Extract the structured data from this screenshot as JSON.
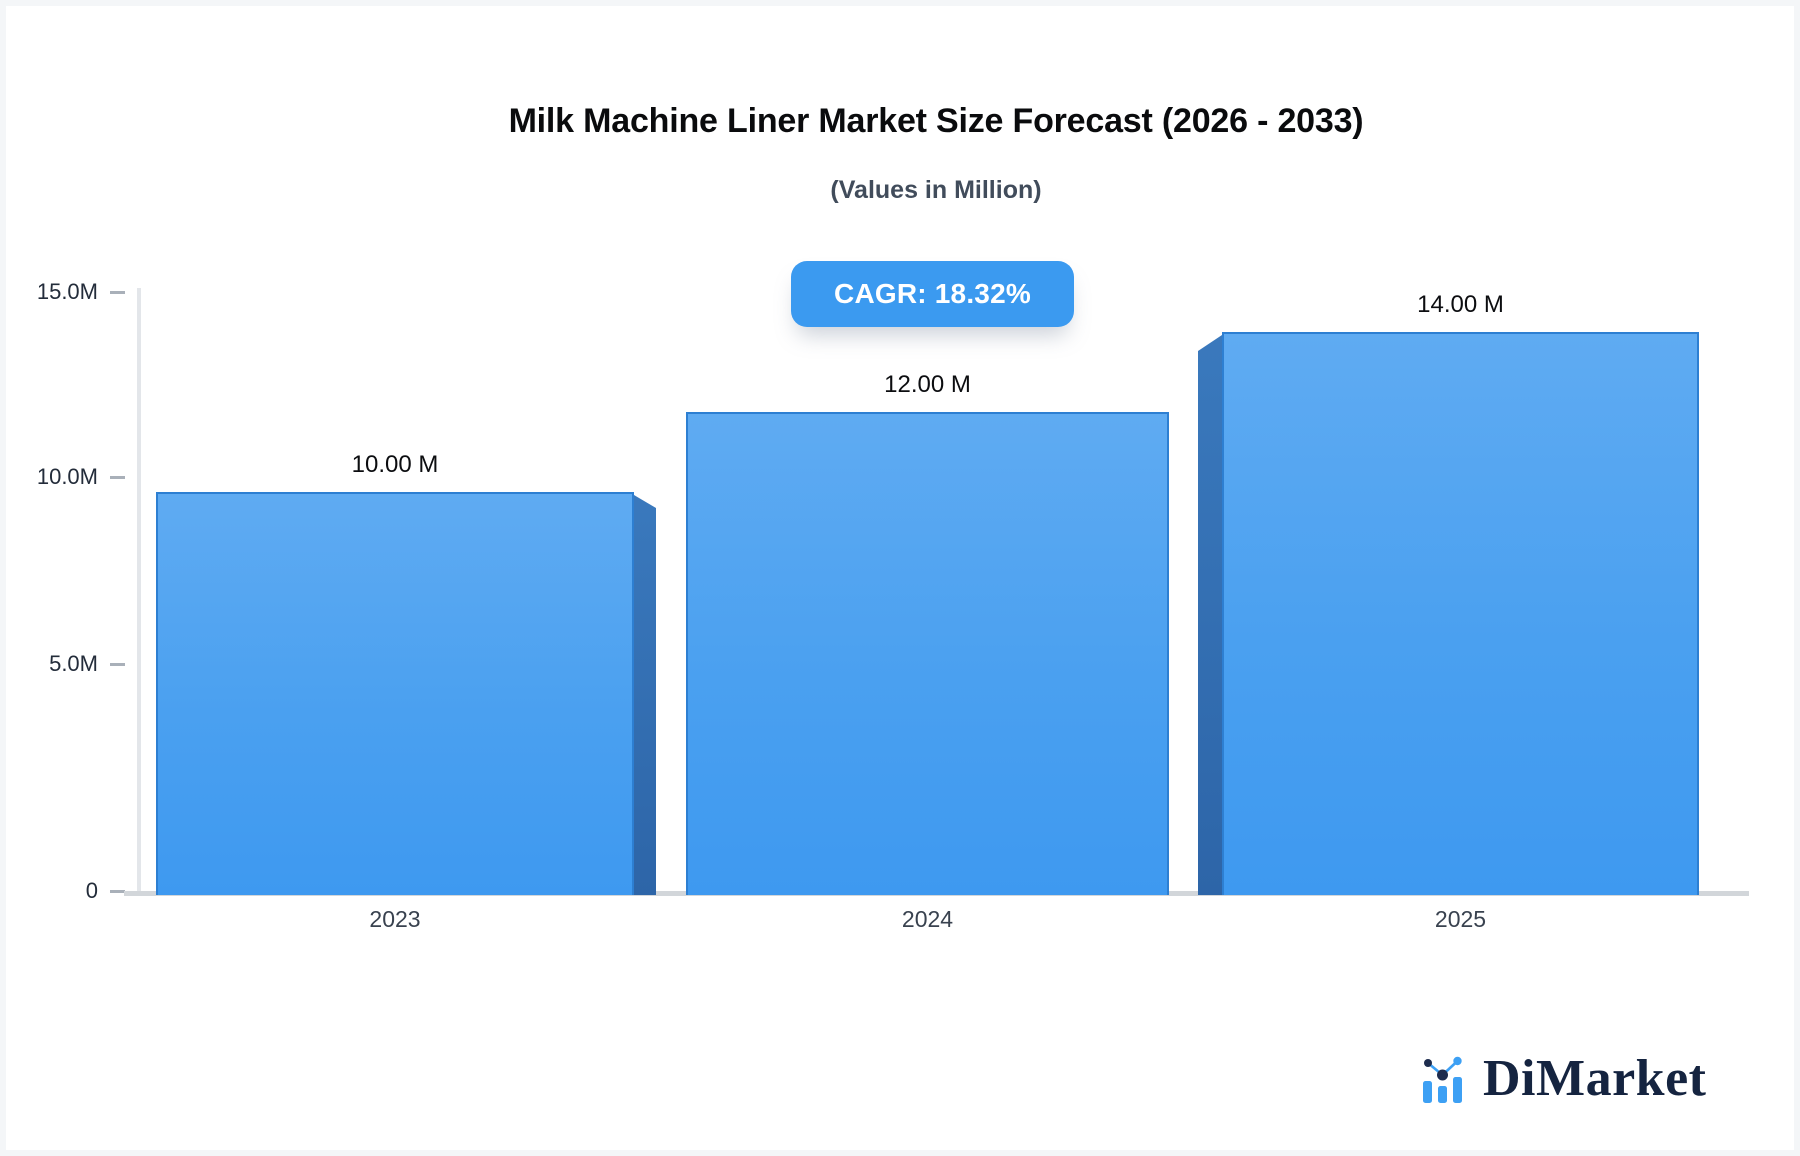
{
  "header": {
    "title": "Milk Machine Liner Market Size Forecast (2026 - 2033)",
    "subtitle": "(Values in Million)"
  },
  "badge": {
    "text": "CAGR: 18.32%"
  },
  "y_axis": {
    "ticks": [
      "15.0M",
      "10.0M",
      "5.0M",
      "0"
    ]
  },
  "chart_data": {
    "type": "bar",
    "title": "Milk Machine Liner Market Size Forecast (2026 - 2033)",
    "subtitle": "(Values in Million)",
    "categories": [
      "2023",
      "2024",
      "2025"
    ],
    "values": [
      10,
      12,
      14
    ],
    "value_labels": [
      "10.00 M",
      "12.00 M",
      "14.00 M"
    ],
    "unit": "Million",
    "annotation": "CAGR: 18.32%",
    "xlabel": "",
    "ylabel": "",
    "ylim": [
      0,
      15
    ],
    "y_tick_labels": [
      "0",
      "5.0M",
      "10.0M",
      "15.0M"
    ],
    "grid": false,
    "legend": false,
    "bar_style": "3d-extruded"
  },
  "branding": {
    "logo_text": "DiMarket",
    "logo_icon": "bar-line-chart-icon"
  },
  "colors": {
    "accent": "#3b9af0",
    "bar_top": "#5fabf2",
    "bar_bottom": "#3e99f0",
    "bar_border": "#2d7fd2",
    "bar_side": "#32709f",
    "axis_line": "#d2d6da",
    "navy": "#152440",
    "title_text": "#0a0b0d",
    "subtitle_text": "#414c5b"
  }
}
